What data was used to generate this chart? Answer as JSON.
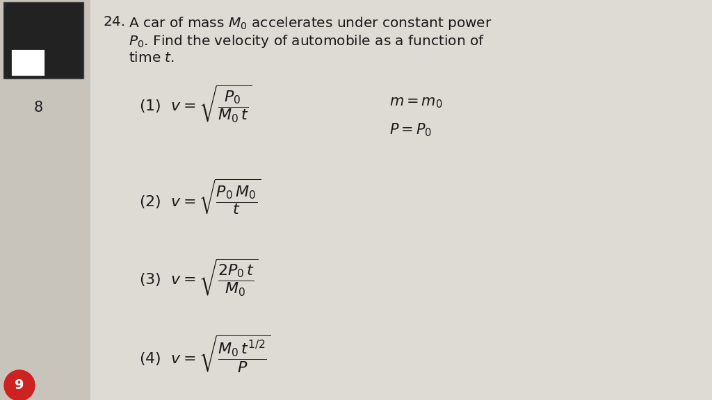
{
  "background_color": "#c8c4bc",
  "paper_color": "#e8e5e0",
  "title_number": "24.",
  "title_line1": "A car of mass $M_0$ accelerates under constant power",
  "title_line2": "$P_0$. Find the velocity of automobile as a function of",
  "title_line3": "time $t$.",
  "options": [
    {
      "num": "(1)",
      "formula": "$v = \\sqrt{\\dfrac{P_0}{M_0\\,t}}$"
    },
    {
      "num": "(2)",
      "formula": "$v = \\sqrt{\\dfrac{P_0 M_0}{t}}$"
    },
    {
      "num": "(3)",
      "formula": "$v = \\sqrt{\\dfrac{2P_0\\,t}{M_0}}$"
    },
    {
      "num": "(4)",
      "formula": "$v = \\sqrt{\\dfrac{M_0\\,t^{1/2}}{P}}$"
    }
  ],
  "annot1": "$m = m_0$",
  "annot2": "$P = P_0$",
  "left_num_top": "8",
  "left_num_bottom": "9",
  "text_color": "#1a1a1a",
  "font_size_title": 14.5,
  "font_size_options": 14,
  "font_size_annot": 13
}
